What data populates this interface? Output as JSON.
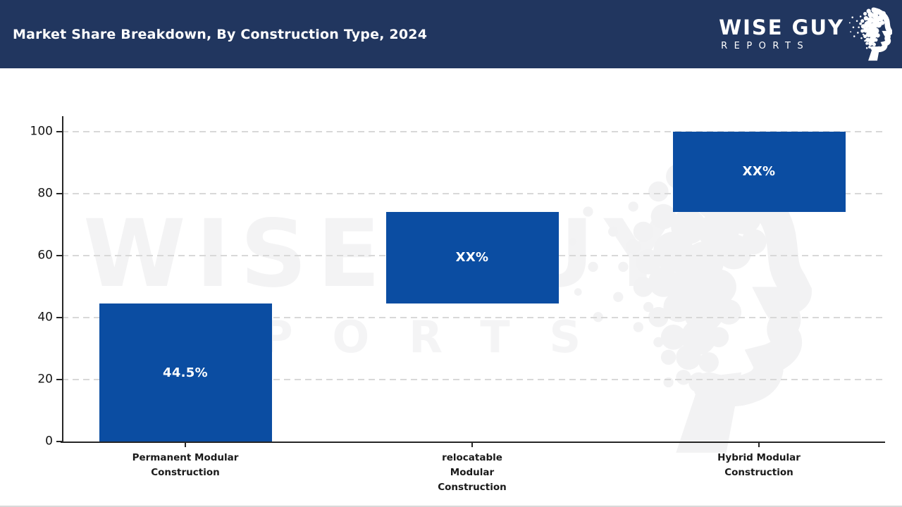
{
  "header": {
    "title": "Market Share Breakdown, By Construction Type, 2024",
    "bg_color": "#21365f",
    "logo": {
      "line1": "WISE GUY",
      "line2": "REPORTS"
    }
  },
  "watermark": {
    "line1": "WISE GUY",
    "line2": "REPORTS"
  },
  "chart_data": {
    "type": "bar",
    "subtype": "stacked-waterfall",
    "title": "Market Share Breakdown, By Construction Type, 2024",
    "categories": [
      "Permanent Modular Construction",
      "relocatable Modular Construction",
      "Hybrid Modular Construction"
    ],
    "category_lines": [
      [
        "Permanent Modular",
        "Construction"
      ],
      [
        "relocatable",
        "Modular",
        "Construction"
      ],
      [
        "Hybrid Modular",
        "Construction"
      ]
    ],
    "segments": [
      {
        "category": "Permanent Modular Construction",
        "start": 0,
        "end": 44.5,
        "label": "44.5%"
      },
      {
        "category": "relocatable Modular Construction",
        "start": 44.5,
        "end": 74.2,
        "label": "XX%"
      },
      {
        "category": "Hybrid Modular Construction",
        "start": 74.2,
        "end": 100,
        "label": "XX%"
      }
    ],
    "yticks": [
      0,
      20,
      40,
      60,
      80,
      100
    ],
    "ylim": [
      0,
      105
    ],
    "xlabel": "",
    "ylabel": "",
    "grid": "horizontal-dashed",
    "legend": "none",
    "bar_color": "#0b4da2",
    "value_label_color": "#ffffff",
    "axis_color": "#262626",
    "gridline_color": "#d8d8d8"
  }
}
